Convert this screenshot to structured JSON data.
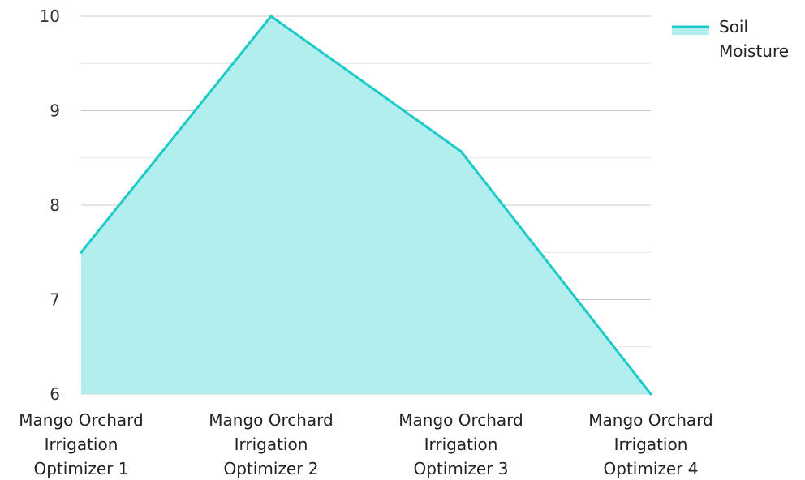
{
  "chart_data": {
    "type": "area",
    "categories": [
      [
        "Mango Orchard",
        "Irrigation",
        "Optimizer 1"
      ],
      [
        "Mango Orchard",
        "Irrigation",
        "Optimizer 2"
      ],
      [
        "Mango Orchard",
        "Irrigation",
        "Optimizer 3"
      ],
      [
        "Mango Orchard",
        "Irrigation",
        "Optimizer 4"
      ]
    ],
    "series": [
      {
        "name": "Soil Moisture",
        "values": [
          7.5,
          10,
          8.57,
          6
        ]
      }
    ],
    "yticks": [
      6,
      7,
      8,
      9,
      10
    ],
    "ylim": [
      6,
      10
    ],
    "grid": true,
    "legend": {
      "position": "top-right",
      "label_lines": [
        "Soil",
        "Moisture"
      ]
    },
    "colors": {
      "line": "#1ccbc8",
      "fill": "#b2eeed",
      "grid": "#c8c8c8",
      "grid_minor": "#e3e3e3"
    }
  }
}
